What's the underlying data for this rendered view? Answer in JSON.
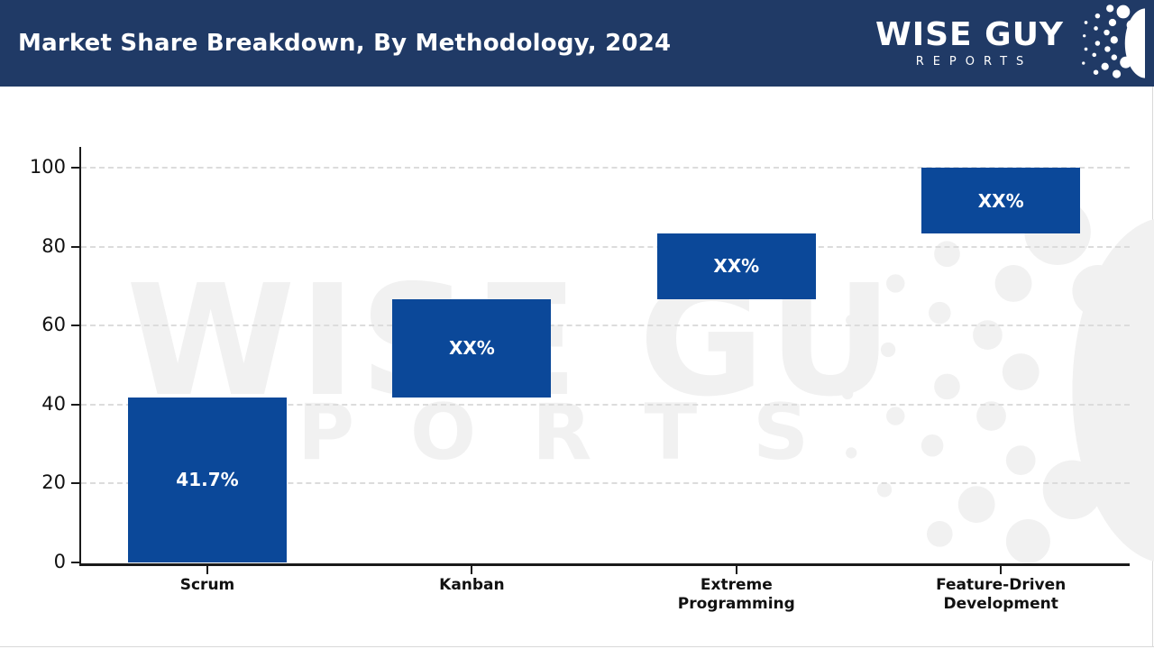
{
  "header": {
    "title": "Market Share Breakdown, By Methodology, 2024",
    "logo": {
      "line1": "WISE GUY",
      "line2": "REPORTS"
    }
  },
  "watermark": {
    "line1": "WISE GU",
    "line2": "PORTS"
  },
  "colors": {
    "header_bg": "#203a66",
    "bar": "#0b4899",
    "bar_label": "#ffffff",
    "grid": "#dcdcdc",
    "axis": "#1a1a1a",
    "watermark": "#f1f1f1"
  },
  "chart_data": {
    "type": "bar",
    "subtype": "waterfall",
    "title": "Market Share Breakdown, By Methodology, 2024",
    "categories": [
      "Scrum",
      "Kanban",
      "Extreme\nProgramming",
      "Feature-Driven\nDevelopment"
    ],
    "series": [
      {
        "name": "Market Share",
        "segments": [
          {
            "category": "Scrum",
            "start": 0,
            "end": 41.7,
            "label": "41.7%"
          },
          {
            "category": "Kanban",
            "start": 41.7,
            "end": 66.7,
            "label": "XX%"
          },
          {
            "category": "Extreme Programming",
            "start": 66.7,
            "end": 83.3,
            "label": "XX%"
          },
          {
            "category": "Feature-Driven Development",
            "start": 83.3,
            "end": 100,
            "label": "XX%"
          }
        ]
      }
    ],
    "xlabel": "",
    "ylabel": "",
    "ylim": [
      0,
      100
    ],
    "yticks": [
      0,
      20,
      40,
      60,
      80,
      100
    ],
    "grid": "horizontal-dashed",
    "legend": "none"
  }
}
